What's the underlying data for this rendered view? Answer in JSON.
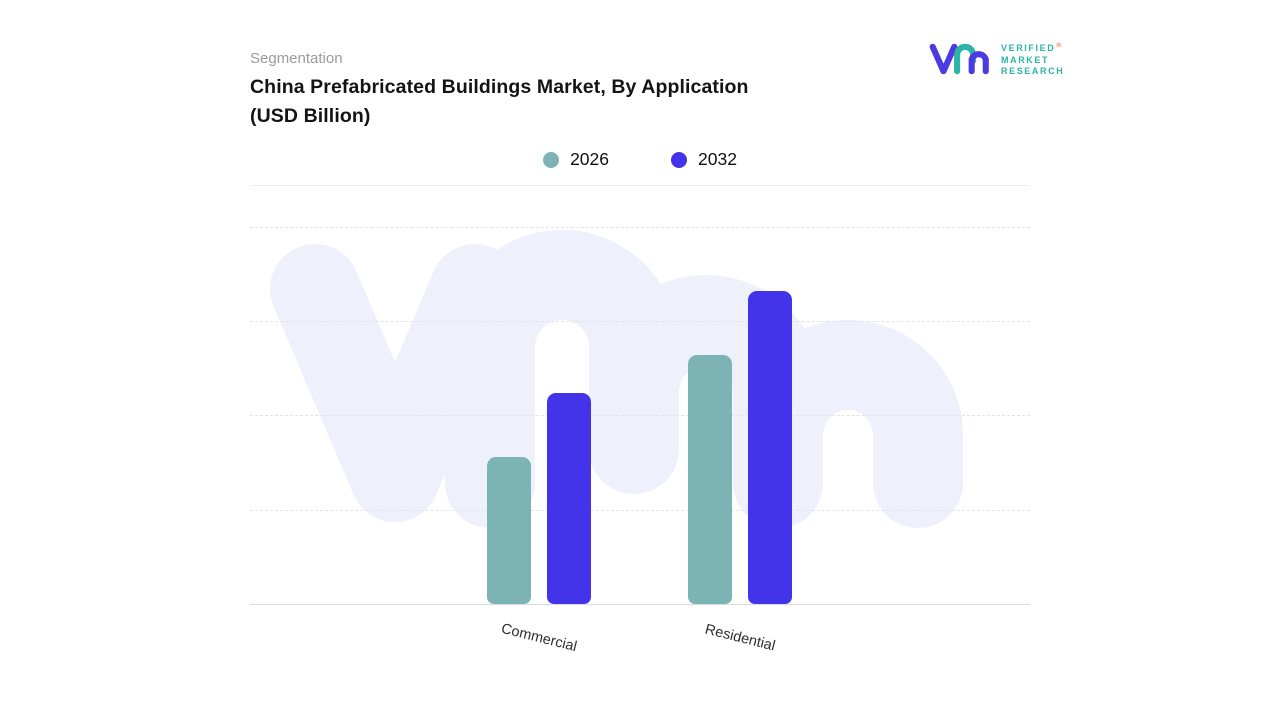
{
  "page": {
    "background_color": "#ffffff"
  },
  "header": {
    "eyebrow": "Segmentation",
    "title_line1": "China Prefabricated Buildings Market, By Application",
    "title_line2": "(USD Billion)"
  },
  "brand": {
    "line1": "VERIFIED",
    "line2": "MARKET",
    "line3": "RESEARCH",
    "registered_mark": "®",
    "teal": "#2eb3a9",
    "indigo": "#4b3be0",
    "registered_color": "#e87a3e",
    "watermark_color": "#eef0fb"
  },
  "chart_data": {
    "type": "bar",
    "title": "China Prefabricated Buildings Market, By Application (USD Billion)",
    "categories": [
      "Commercial",
      "Residential"
    ],
    "series": [
      {
        "name": "2026",
        "color": "#7cb4b5",
        "values": [
          39,
          66
        ]
      },
      {
        "name": "2032",
        "color": "#4334e9",
        "values": [
          56,
          83
        ]
      }
    ],
    "ylim": [
      0,
      100
    ],
    "value_axis_visible": false,
    "value_units": "relative height (no tick labels shown)",
    "grid": "horizontal dashed lines",
    "legend_position": "top-center",
    "bar_corner_radius": "rounded"
  }
}
